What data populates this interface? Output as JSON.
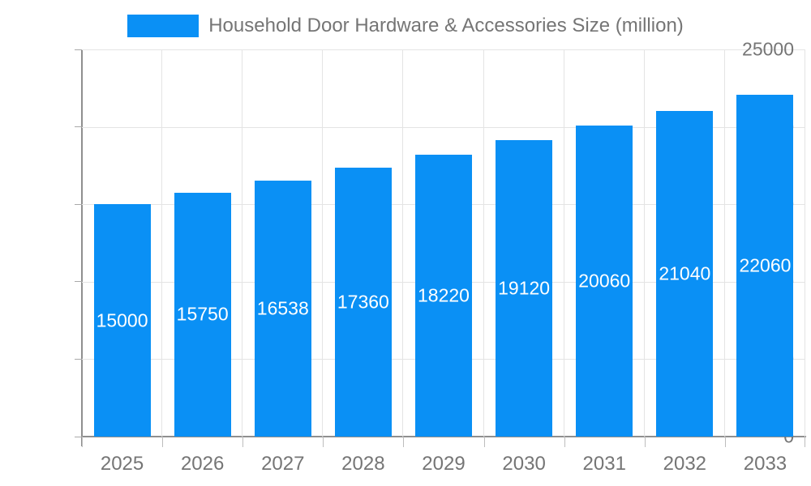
{
  "legend": {
    "label": "Household Door Hardware & Accessories Size (million)",
    "swatch_color": "#0a90f5"
  },
  "chart_data": {
    "type": "bar",
    "title": "Household Door Hardware & Accessories Size (million)",
    "categories": [
      "2025",
      "2026",
      "2027",
      "2028",
      "2029",
      "2030",
      "2031",
      "2032",
      "2033"
    ],
    "values": [
      15000,
      15750,
      16538,
      17360,
      18220,
      19120,
      20060,
      21040,
      22060
    ],
    "xlabel": "",
    "ylabel": "",
    "ylim": [
      0,
      25000
    ],
    "yticks": [
      0,
      5000,
      10000,
      15000,
      20000,
      25000
    ],
    "grid": true,
    "legend_position": "top",
    "bar_color": "#0a90f5",
    "bar_label_color": "#ffffff"
  },
  "colors": {
    "bar": "#0a90f5",
    "grid": "#e4e4e4",
    "axis": "#8f8f8f",
    "text": "#757575",
    "bar_label": "#ffffff",
    "background": "#ffffff"
  }
}
